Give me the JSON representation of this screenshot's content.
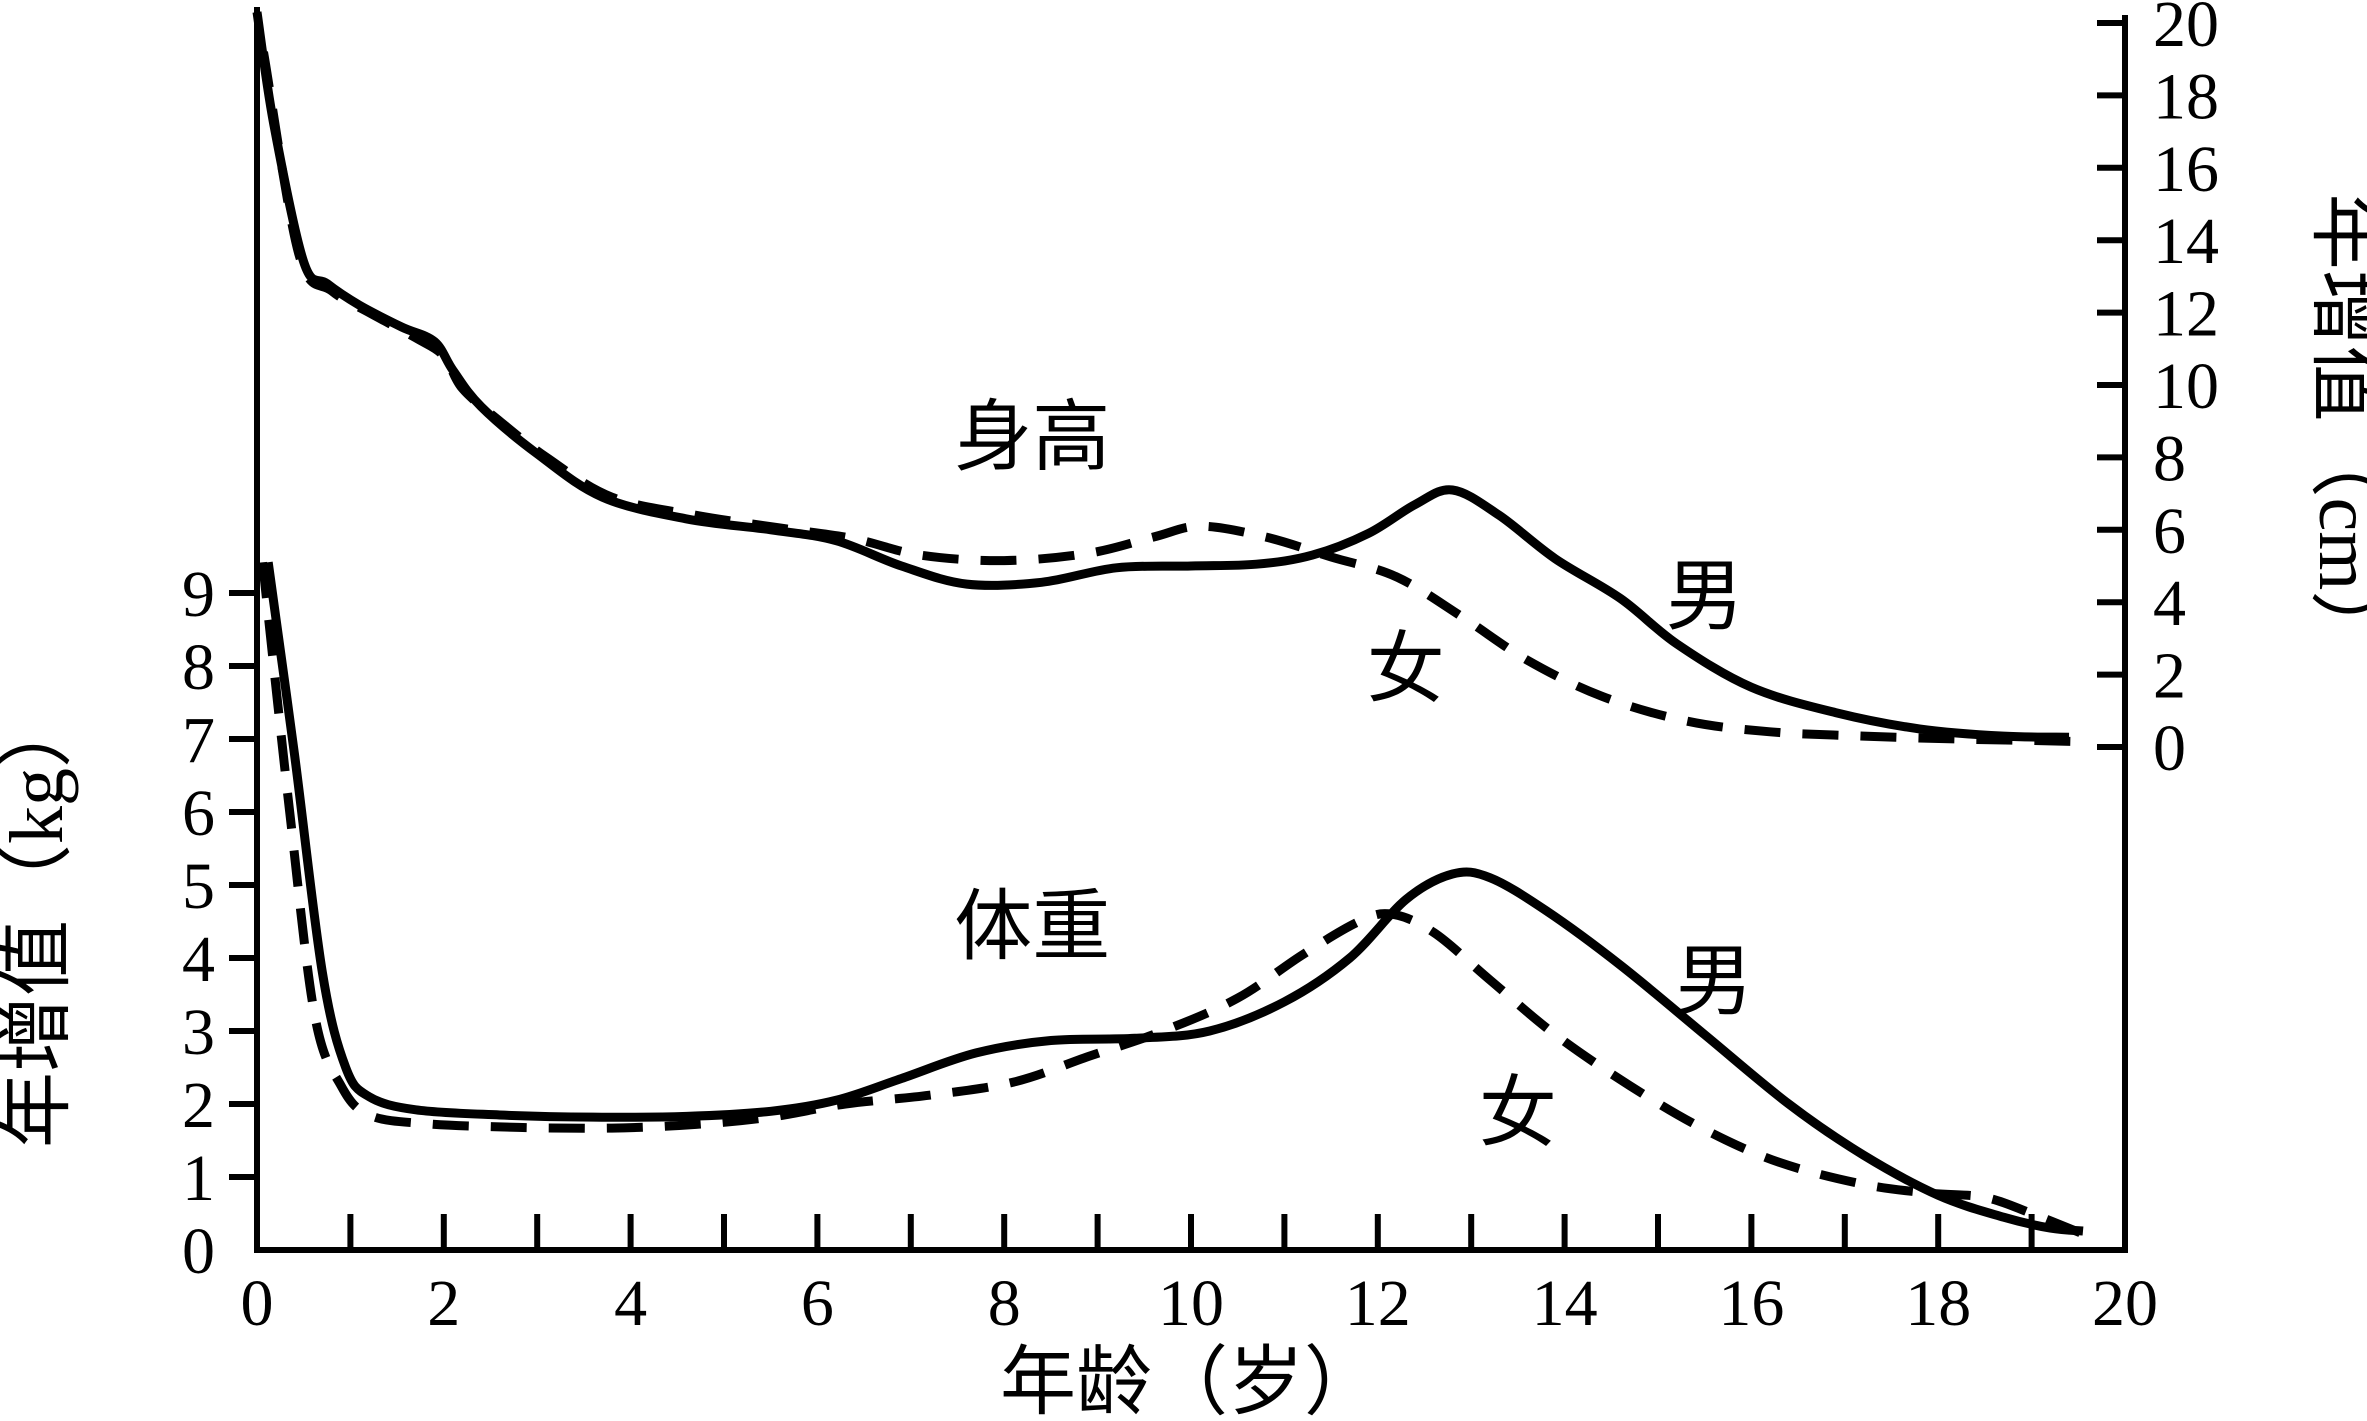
{
  "page": {
    "background": "#ffffff",
    "ink": "#000000"
  },
  "chart_data": {
    "type": "line",
    "title": "",
    "xlabel": "年龄（岁）",
    "ylabel_left": "年增值（kg）",
    "ylabel_right": "年增值（cm）",
    "grid": false,
    "legend_position": "inline-annotations",
    "x_axis": {
      "min": 0,
      "max": 20,
      "tick_interval": 1,
      "label_interval": 2,
      "tick_labels": [
        "0",
        "2",
        "4",
        "6",
        "8",
        "10",
        "12",
        "14",
        "16",
        "18",
        "20"
      ]
    },
    "y_left_axis": {
      "unit": "kg",
      "min": 0,
      "max": 9,
      "tick_interval": 1,
      "tick_labels": [
        "0",
        "1",
        "2",
        "3",
        "4",
        "5",
        "6",
        "7",
        "8",
        "9"
      ]
    },
    "y_right_axis": {
      "unit": "cm",
      "min": 0,
      "max": 20,
      "tick_interval": 2,
      "tick_labels": [
        "0",
        "2",
        "4",
        "6",
        "8",
        "10",
        "12",
        "14",
        "16",
        "18",
        "20"
      ]
    },
    "annotations": [
      {
        "text": "身高",
        "axis": "right",
        "age": 8.3,
        "value": 8.6
      },
      {
        "text": "体重",
        "axis": "left",
        "age": 8.3,
        "value": 4.45
      },
      {
        "text": "男",
        "axis": "right",
        "age": 15.5,
        "value": 4.2
      },
      {
        "text": "女",
        "axis": "right",
        "age": 12.3,
        "value": 2.2
      },
      {
        "text": "男",
        "axis": "left",
        "age": 15.6,
        "value": 3.7
      },
      {
        "text": "女",
        "axis": "left",
        "age": 13.5,
        "value": 1.9
      }
    ],
    "series": [
      {
        "name": "身高-男",
        "measure": "height",
        "sex": "male",
        "axis": "right",
        "style": "solid",
        "points": [
          [
            0,
            20.3
          ],
          [
            0.18,
            17.2
          ],
          [
            0.5,
            13.4
          ],
          [
            0.75,
            12.8
          ],
          [
            1.1,
            12.2
          ],
          [
            1.55,
            11.6
          ],
          [
            1.9,
            11.2
          ],
          [
            2.1,
            10.4
          ],
          [
            2.4,
            9.4
          ],
          [
            3,
            8.1
          ],
          [
            3.7,
            6.9
          ],
          [
            4.6,
            6.3
          ],
          [
            5.5,
            6.0
          ],
          [
            6.2,
            5.7
          ],
          [
            6.9,
            5.0
          ],
          [
            7.6,
            4.5
          ],
          [
            8.4,
            4.55
          ],
          [
            9.2,
            4.95
          ],
          [
            10,
            5.0
          ],
          [
            10.7,
            5.05
          ],
          [
            11.3,
            5.3
          ],
          [
            11.9,
            5.9
          ],
          [
            12.4,
            6.7
          ],
          [
            12.8,
            7.1
          ],
          [
            13.3,
            6.4
          ],
          [
            13.9,
            5.2
          ],
          [
            14.6,
            4.1
          ],
          [
            15.2,
            2.85
          ],
          [
            16,
            1.65
          ],
          [
            16.9,
            0.95
          ],
          [
            17.8,
            0.5
          ],
          [
            18.7,
            0.3
          ],
          [
            19.4,
            0.27
          ]
        ]
      },
      {
        "name": "身高-女",
        "measure": "height",
        "sex": "female",
        "axis": "right",
        "style": "dashed",
        "points": [
          [
            0.07,
            19.2
          ],
          [
            0.45,
            13.6
          ],
          [
            0.8,
            12.6
          ],
          [
            1.2,
            12.0
          ],
          [
            1.7,
            11.3
          ],
          [
            2.0,
            10.8
          ],
          [
            2.2,
            9.9
          ],
          [
            2.6,
            9.0
          ],
          [
            3.1,
            8.0
          ],
          [
            3.8,
            6.9
          ],
          [
            4.7,
            6.4
          ],
          [
            5.6,
            6.05
          ],
          [
            6.4,
            5.75
          ],
          [
            7.1,
            5.3
          ],
          [
            8,
            5.15
          ],
          [
            8.9,
            5.35
          ],
          [
            9.6,
            5.8
          ],
          [
            10.1,
            6.1
          ],
          [
            10.8,
            5.8
          ],
          [
            11.5,
            5.25
          ],
          [
            12.2,
            4.7
          ],
          [
            12.9,
            3.6
          ],
          [
            13.6,
            2.4
          ],
          [
            14.4,
            1.4
          ],
          [
            15.3,
            0.72
          ],
          [
            16.2,
            0.42
          ],
          [
            17.2,
            0.3
          ],
          [
            18.2,
            0.22
          ],
          [
            19,
            0.18
          ],
          [
            19.5,
            0.15
          ]
        ]
      },
      {
        "name": "体重-男",
        "measure": "weight",
        "sex": "male",
        "axis": "left",
        "style": "solid",
        "points": [
          [
            0.12,
            9.42
          ],
          [
            0.4,
            6.8
          ],
          [
            0.7,
            3.8
          ],
          [
            0.95,
            2.5
          ],
          [
            1.2,
            2.1
          ],
          [
            1.7,
            1.92
          ],
          [
            2.6,
            1.85
          ],
          [
            3.6,
            1.82
          ],
          [
            4.6,
            1.83
          ],
          [
            5.5,
            1.9
          ],
          [
            6.2,
            2.05
          ],
          [
            6.9,
            2.35
          ],
          [
            7.7,
            2.7
          ],
          [
            8.5,
            2.87
          ],
          [
            9.4,
            2.9
          ],
          [
            10.2,
            3.0
          ],
          [
            11,
            3.4
          ],
          [
            11.7,
            4.0
          ],
          [
            12.3,
            4.8
          ],
          [
            12.8,
            5.15
          ],
          [
            13.2,
            5.1
          ],
          [
            13.8,
            4.65
          ],
          [
            14.6,
            3.9
          ],
          [
            15.5,
            2.95
          ],
          [
            16.4,
            2.0
          ],
          [
            17.2,
            1.3
          ],
          [
            18,
            0.75
          ],
          [
            18.7,
            0.45
          ],
          [
            19.2,
            0.3
          ],
          [
            19.55,
            0.26
          ]
        ]
      },
      {
        "name": "体重-女",
        "measure": "weight",
        "sex": "female",
        "axis": "left",
        "style": "dashed",
        "points": [
          [
            0.06,
            9.42
          ],
          [
            0.35,
            6.0
          ],
          [
            0.62,
            3.2
          ],
          [
            0.9,
            2.25
          ],
          [
            1.2,
            1.85
          ],
          [
            1.8,
            1.73
          ],
          [
            2.8,
            1.68
          ],
          [
            3.8,
            1.67
          ],
          [
            4.7,
            1.72
          ],
          [
            5.5,
            1.82
          ],
          [
            6.3,
            2.0
          ],
          [
            7.2,
            2.12
          ],
          [
            8.1,
            2.3
          ],
          [
            8.9,
            2.65
          ],
          [
            9.7,
            3.0
          ],
          [
            10.5,
            3.45
          ],
          [
            11.2,
            4.05
          ],
          [
            11.8,
            4.5
          ],
          [
            12.15,
            4.6
          ],
          [
            12.6,
            4.35
          ],
          [
            13.2,
            3.7
          ],
          [
            13.9,
            2.95
          ],
          [
            14.7,
            2.25
          ],
          [
            15.5,
            1.65
          ],
          [
            16.3,
            1.2
          ],
          [
            17.2,
            0.9
          ],
          [
            17.9,
            0.78
          ],
          [
            18.5,
            0.72
          ],
          [
            19,
            0.5
          ],
          [
            19.55,
            0.22
          ]
        ]
      }
    ]
  }
}
